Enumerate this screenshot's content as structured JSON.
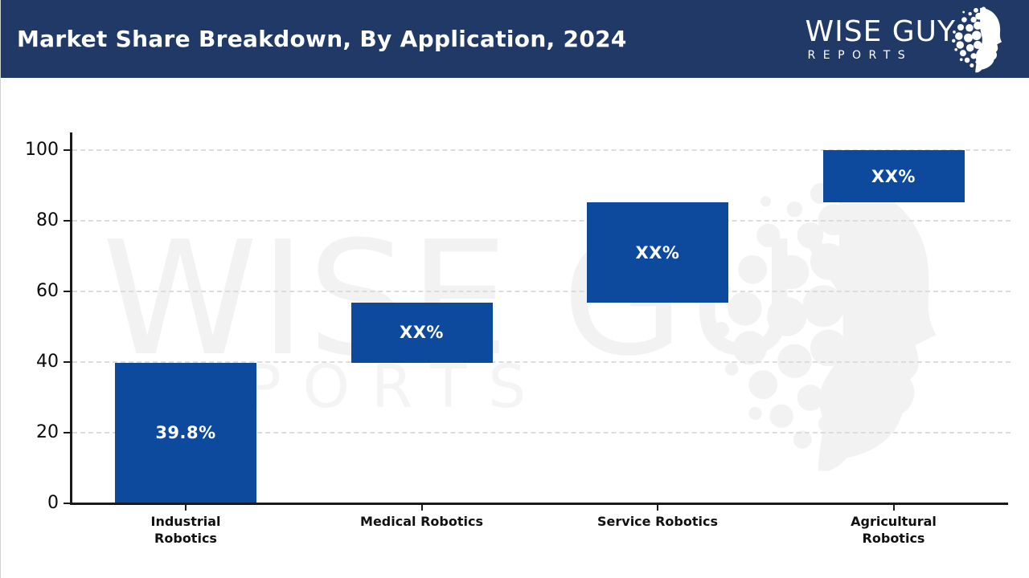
{
  "header": {
    "title": "Market Share Breakdown, By Application, 2024",
    "logo": {
      "wordmark": "WISE GUY",
      "subtext": "REPORTS"
    }
  },
  "watermark": {
    "wordmark": "WISE GUY",
    "subtext": "REPORTS"
  },
  "chart_data": {
    "type": "bar",
    "subtype": "waterfall",
    "title": "Market Share Breakdown, By Application, 2024",
    "categories": [
      "Industrial\nRobotics",
      "Medical Robotics",
      "Service Robotics",
      "Agricultural\nRobotics"
    ],
    "segments": [
      {
        "category": "Industrial Robotics",
        "start": 0,
        "end": 39.8,
        "label": "39.8%"
      },
      {
        "category": "Medical Robotics",
        "start": 39.8,
        "end": 56.8,
        "label": "XX%"
      },
      {
        "category": "Service Robotics",
        "start": 56.8,
        "end": 85.2,
        "label": "XX%"
      },
      {
        "category": "Agricultural Robotics",
        "start": 85.2,
        "end": 100,
        "label": "XX%"
      }
    ],
    "yticks": [
      0,
      20,
      40,
      60,
      80,
      100
    ],
    "ylim": [
      0,
      105
    ],
    "grid": "horizontal-dashed",
    "legend": "none",
    "colors": {
      "bar": "#0d4a9e",
      "bar_label": "#ffffff",
      "axis": "#1a1a1a",
      "grid": "#dcdcdc",
      "header_bg": "#203966",
      "watermark": "#f2f2f2"
    }
  }
}
